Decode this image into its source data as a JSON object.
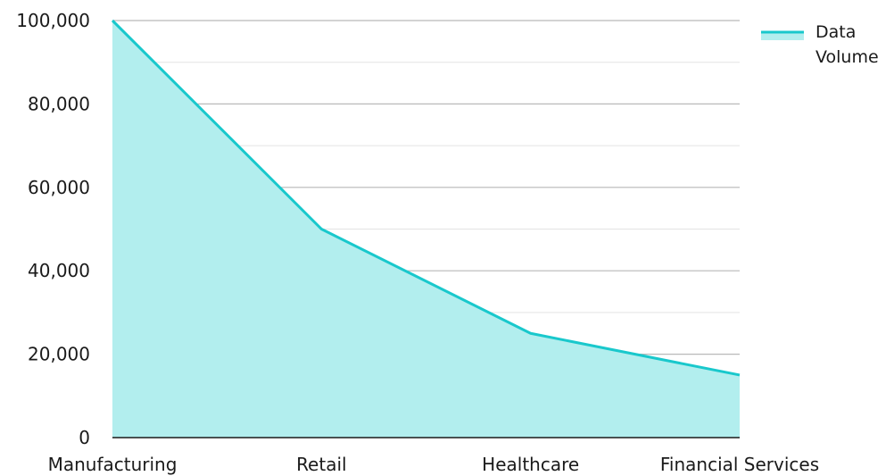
{
  "chart_data": {
    "type": "area",
    "categories": [
      "Manufacturing",
      "Retail",
      "Healthcare",
      "Financial Services"
    ],
    "series": [
      {
        "name": "Data Volume",
        "values": [
          100000,
          50000,
          25000,
          15000
        ]
      }
    ],
    "y_ticks": [
      "0",
      "20,000",
      "40,000",
      "60,000",
      "80,000",
      "100,000"
    ],
    "ylim": [
      0,
      100000
    ],
    "grid": true,
    "legend": {
      "placement": "top-right",
      "lines": [
        "Data",
        "Volume"
      ]
    },
    "colors": {
      "line": "#19c8cc",
      "fill": "#b2eeee",
      "grid_major": "#b9b9b9",
      "grid_minor": "#e3e3e3",
      "axis": "#1a1a1a"
    }
  }
}
